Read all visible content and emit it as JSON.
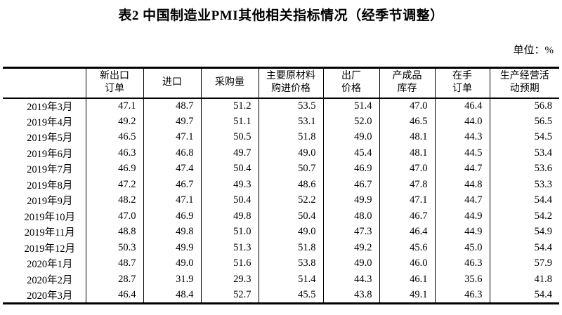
{
  "title": "表2 中国制造业PMI其他相关指标情况（经季节调整）",
  "unit_label": "单位：%",
  "table": {
    "corner_header": "",
    "columns": [
      "新出口\n订单",
      "进口",
      "采购量",
      "主要原材料\n购进价格",
      "出厂\n价格",
      "产成品\n库存",
      "在手\n订单",
      "生产经营活\n动预期"
    ],
    "rows": [
      {
        "label": "2019年3月",
        "values": [
          "47.1",
          "48.7",
          "51.2",
          "53.5",
          "51.4",
          "47.0",
          "46.4",
          "56.8"
        ]
      },
      {
        "label": "2019年4月",
        "values": [
          "49.2",
          "49.7",
          "51.1",
          "53.1",
          "52.0",
          "46.5",
          "44.0",
          "56.5"
        ]
      },
      {
        "label": "2019年5月",
        "values": [
          "46.5",
          "47.1",
          "50.5",
          "51.8",
          "49.0",
          "48.1",
          "44.3",
          "54.5"
        ]
      },
      {
        "label": "2019年6月",
        "values": [
          "46.3",
          "46.8",
          "49.7",
          "49.0",
          "45.4",
          "48.1",
          "44.5",
          "53.4"
        ]
      },
      {
        "label": "2019年7月",
        "values": [
          "46.9",
          "47.4",
          "50.4",
          "50.7",
          "46.9",
          "47.0",
          "44.7",
          "53.6"
        ]
      },
      {
        "label": "2019年8月",
        "values": [
          "47.2",
          "46.7",
          "49.3",
          "48.6",
          "46.7",
          "47.8",
          "44.8",
          "53.3"
        ]
      },
      {
        "label": "2019年9月",
        "values": [
          "48.2",
          "47.1",
          "50.4",
          "52.2",
          "49.9",
          "47.1",
          "44.7",
          "54.4"
        ]
      },
      {
        "label": "2019年10月",
        "values": [
          "47.0",
          "46.9",
          "49.8",
          "50.4",
          "48.0",
          "46.7",
          "44.9",
          "54.2"
        ]
      },
      {
        "label": "2019年11月",
        "values": [
          "48.8",
          "49.8",
          "51.0",
          "49.0",
          "47.3",
          "46.4",
          "44.9",
          "54.9"
        ]
      },
      {
        "label": "2019年12月",
        "values": [
          "50.3",
          "49.9",
          "51.3",
          "51.8",
          "49.2",
          "45.6",
          "45.0",
          "54.4"
        ]
      },
      {
        "label": "2020年1月",
        "values": [
          "48.7",
          "49.0",
          "51.6",
          "53.8",
          "49.0",
          "46.0",
          "46.3",
          "57.9"
        ]
      },
      {
        "label": "2020年2月",
        "values": [
          "28.7",
          "31.9",
          "29.3",
          "51.4",
          "44.3",
          "46.1",
          "35.6",
          "41.8"
        ]
      },
      {
        "label": "2020年3月",
        "values": [
          "46.4",
          "48.4",
          "52.7",
          "45.5",
          "43.8",
          "49.1",
          "46.3",
          "54.4"
        ]
      }
    ]
  }
}
